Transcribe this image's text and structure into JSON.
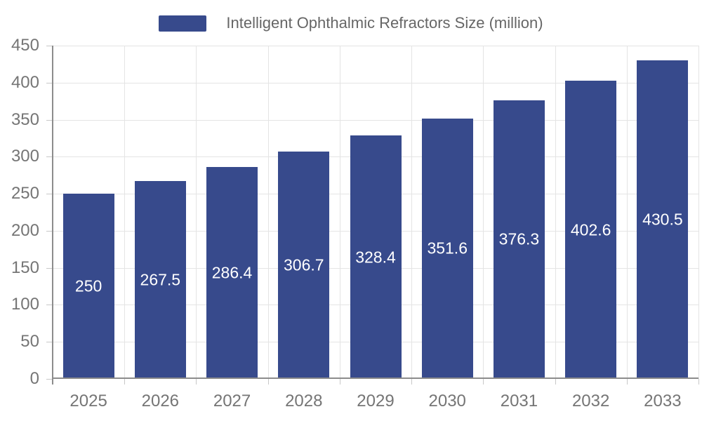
{
  "colors": {
    "bar": "#374A8C",
    "axis_line": "#8C8C8C",
    "grid_line": "#E4E4E4",
    "tick_mark": "#C8C8C8",
    "tick_label_text": "#757575",
    "value_label_text": "#FFFFFF",
    "legend_text": "#666666",
    "background": "#FFFFFF"
  },
  "legend": {
    "label": "Intelligent Ophthalmic Refractors Size (million)"
  },
  "chart_data": {
    "type": "bar",
    "title": "Intelligent Ophthalmic Refractors Size (million)",
    "series_name": "Intelligent Ophthalmic Refractors Size (million)",
    "categories": [
      "2025",
      "2026",
      "2027",
      "2028",
      "2029",
      "2030",
      "2031",
      "2032",
      "2033"
    ],
    "values": [
      250,
      267.5,
      286.4,
      306.7,
      328.4,
      351.6,
      376.3,
      402.6,
      430.5
    ],
    "value_labels": [
      "250",
      "267.5",
      "286.4",
      "306.7",
      "328.4",
      "351.6",
      "376.3",
      "402.6",
      "430.5"
    ],
    "xlabel": "",
    "ylabel": "",
    "ylim": [
      0,
      450
    ],
    "yticks": [
      0,
      50,
      100,
      150,
      200,
      250,
      300,
      350,
      400,
      450
    ],
    "grid": true,
    "legend_position": "top-center",
    "value_label_position": "inside-center"
  }
}
